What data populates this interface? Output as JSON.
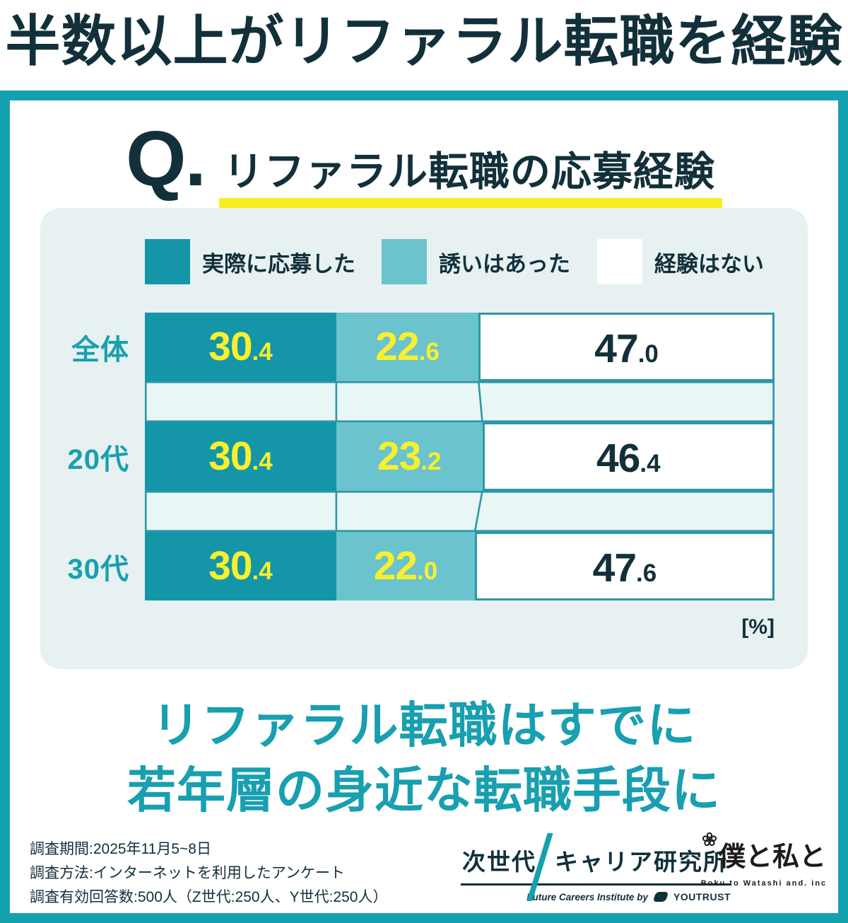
{
  "header": {
    "title": "半数以上がリファラル転職を経験"
  },
  "question": {
    "prefix": "Q.",
    "title": "リファラル転職の応募経験"
  },
  "legend": [
    {
      "label": "実際に応募した",
      "color": "#1496a8",
      "value_color": "#f9f02d"
    },
    {
      "label": "誘いはあった",
      "color": "#6ac3cd",
      "value_color": "#f9f02d"
    },
    {
      "label": "経験はない",
      "color": "#ffffff",
      "value_color": "#12303a"
    }
  ],
  "chart_data": {
    "type": "bar",
    "stacked": true,
    "orientation": "horizontal",
    "unit": "[%]",
    "xlim": [
      0,
      100
    ],
    "categories": [
      "全体",
      "20代",
      "30代"
    ],
    "series": [
      {
        "name": "実際に応募した",
        "values": [
          30.4,
          30.4,
          30.4
        ]
      },
      {
        "name": "誘いはあった",
        "values": [
          22.6,
          23.2,
          22.0
        ]
      },
      {
        "name": "経験はない",
        "values": [
          47.0,
          46.4,
          47.6
        ]
      }
    ],
    "legend_position": "top",
    "grid": false
  },
  "message": {
    "line1": "リファラル転職はすでに",
    "line2": "若年層の身近な転職手段に"
  },
  "footer": {
    "survey": [
      "調査期間:2025年11月5~8日",
      "調査方法:インターネットを利用したアンケート",
      "調査有効回答数:500人（Z世代:250人、Y世代:250人）"
    ],
    "logo1": {
      "text_before": "次世代",
      "text_after": "キャリア研究所",
      "subtitle": "Future Careers Institute by",
      "brand": "YOUTRUST"
    },
    "logo2": {
      "text": "僕と私と",
      "subtitle": "Boku to Watashi and. inc"
    }
  },
  "colors": {
    "accent_teal": "#14a1af",
    "bar_teal": "#1496a8",
    "bar_light_teal": "#6ac3cd",
    "yellow": "#f9f02d",
    "underline_yellow": "#f7ee21",
    "dark_navy": "#12303a",
    "panel_bg": "#e7f1f1",
    "band_bg": "#e9f6f6",
    "line_teal": "#2d97a6",
    "label_teal": "#18a0b0"
  }
}
